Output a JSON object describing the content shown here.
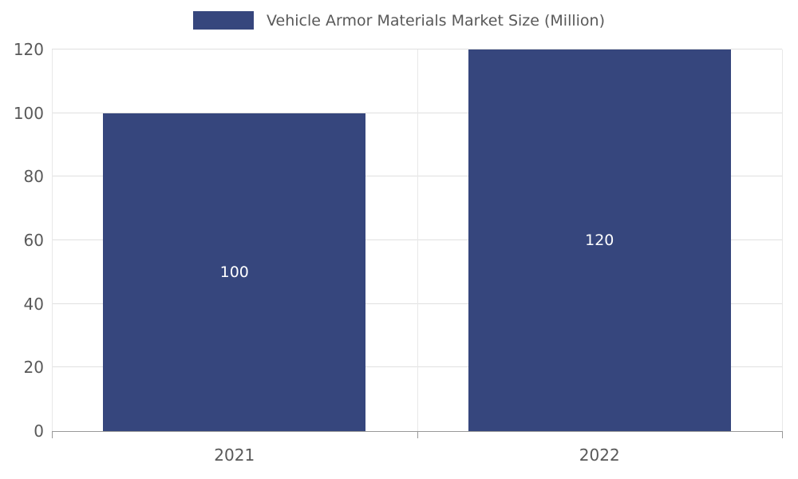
{
  "chart_data": {
    "type": "bar",
    "title": "Vehicle Armor Materials Market Size (Million)",
    "categories": [
      "2021",
      "2022"
    ],
    "series": [
      {
        "name": "Vehicle Armor Materials Market Size (Million)",
        "values": [
          100,
          120
        ]
      }
    ],
    "data_labels": [
      "100",
      "120"
    ],
    "xlabel": "",
    "ylabel": "",
    "ylim": [
      0,
      120
    ],
    "yticks": [
      0,
      20,
      40,
      60,
      80,
      100,
      120
    ],
    "grid": true,
    "legend_position": "top-center",
    "colors": {
      "bar": "#36467d",
      "bar_label_text": "#ffffff",
      "axis_text": "#595959",
      "gridline": "#e0e0e0",
      "axis_line": "#999999"
    }
  }
}
